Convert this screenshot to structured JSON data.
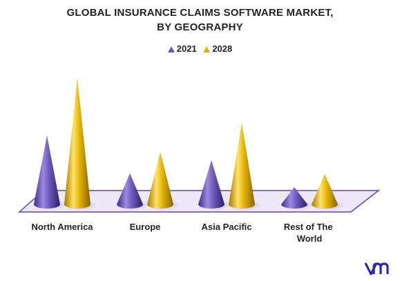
{
  "chart_data": {
    "type": "bar",
    "title": "GLOBAL INSURANCE CLAIMS SOFTWARE MARKET,",
    "subtitle": "BY GEOGRAPHY",
    "categories": [
      "North America",
      "Europe",
      "Asia Pacific",
      "Rest of The World"
    ],
    "series": [
      {
        "name": "2021",
        "values": [
          100,
          45,
          64,
          25
        ],
        "color": "#6a56b8"
      },
      {
        "name": "2028",
        "values": [
          183,
          76,
          118,
          44
        ],
        "color": "#e0b000"
      }
    ],
    "legend_position": "top-center",
    "grid": false
  },
  "colors": {
    "series_2021": "#6a56b8",
    "series_2028": "#e0b000",
    "floor": "#ede9f8",
    "floor_edge": "#5a45a8"
  },
  "logo_icon": "vmr-logo-icon"
}
